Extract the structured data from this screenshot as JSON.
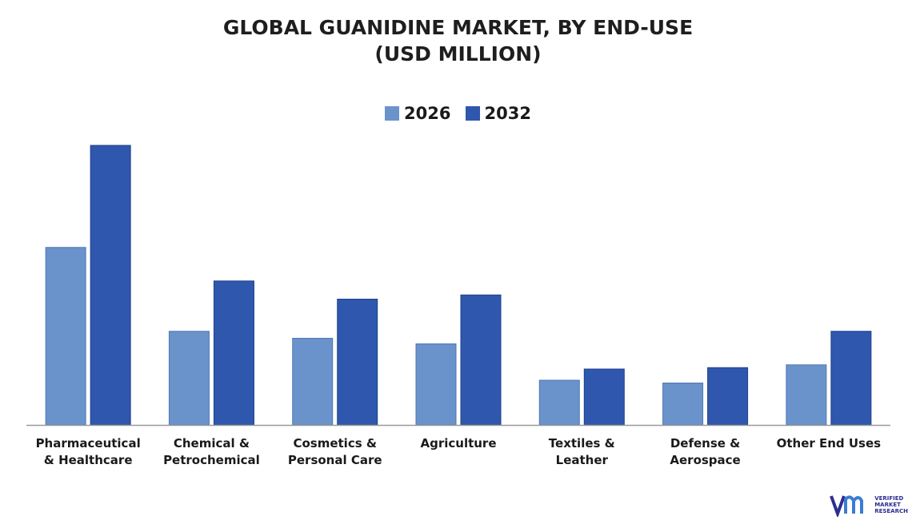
{
  "chart_data": {
    "type": "bar",
    "title_line1": "GLOBAL GUANIDINE MARKET, BY END-USE",
    "title_line2": "(USD MILLION)",
    "legend_position": "top-center",
    "grid": false,
    "ylim": [
      0,
      100
    ],
    "categories": [
      [
        "Pharmaceutical",
        "& Healthcare"
      ],
      [
        "Chemical &",
        "Petrochemical"
      ],
      [
        "Cosmetics &",
        "Personal Care"
      ],
      [
        "Agriculture"
      ],
      [
        "Textiles &",
        "Leather"
      ],
      [
        "Defense &",
        "Aerospace"
      ],
      [
        "Other End Uses"
      ]
    ],
    "series": [
      {
        "name": "2026",
        "color": "#6a93cb",
        "values": [
          63.5,
          33.5,
          31,
          29,
          16,
          15,
          21.5
        ]
      },
      {
        "name": "2032",
        "color": "#2f57ad",
        "values": [
          100,
          51.5,
          45,
          46.5,
          20,
          20.5,
          33.5
        ]
      }
    ]
  },
  "logo": {
    "line1": "VERIFIED",
    "line2": "MARKET",
    "line3": "RESEARCH"
  }
}
